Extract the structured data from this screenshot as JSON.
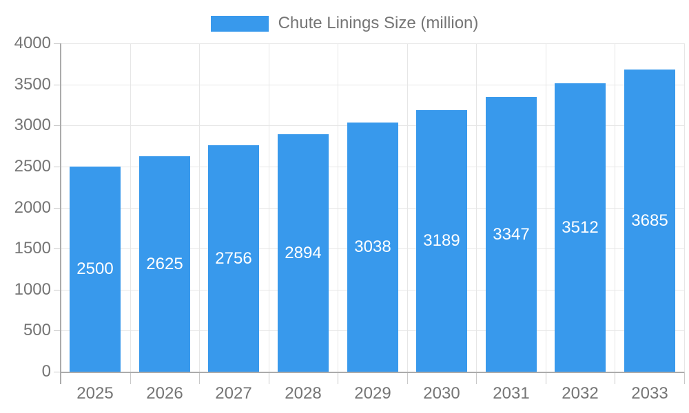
{
  "legend": {
    "label": "Chute Linings Size (million)"
  },
  "colors": {
    "bar": "#3899EC",
    "bar_label": "#FFFFFF",
    "grid": "#E6E6E6",
    "axis_line": "#ABABAB",
    "tick": "#C9C9C9",
    "axis_text": "#757575",
    "legend_text": "#757575",
    "background": "#FFFFFF"
  },
  "chart_data": {
    "type": "bar",
    "title": "",
    "categories": [
      "2025",
      "2026",
      "2027",
      "2028",
      "2029",
      "2030",
      "2031",
      "2032",
      "2033"
    ],
    "values": [
      2500,
      2625,
      2756,
      2894,
      3038,
      3189,
      3347,
      3512,
      3685
    ],
    "series": [
      {
        "name": "Chute Linings Size (million)",
        "values": [
          2500,
          2625,
          2756,
          2894,
          3038,
          3189,
          3347,
          3512,
          3685
        ]
      }
    ],
    "xlabel": "",
    "ylabel": "",
    "ylim": [
      0,
      4000
    ],
    "ytick_step": 500,
    "yticks": [
      "0",
      "500",
      "1000",
      "1500",
      "2000",
      "2500",
      "3000",
      "3500",
      "4000"
    ],
    "grid": true,
    "legend_position": "top",
    "value_labels": "inside-middle"
  }
}
